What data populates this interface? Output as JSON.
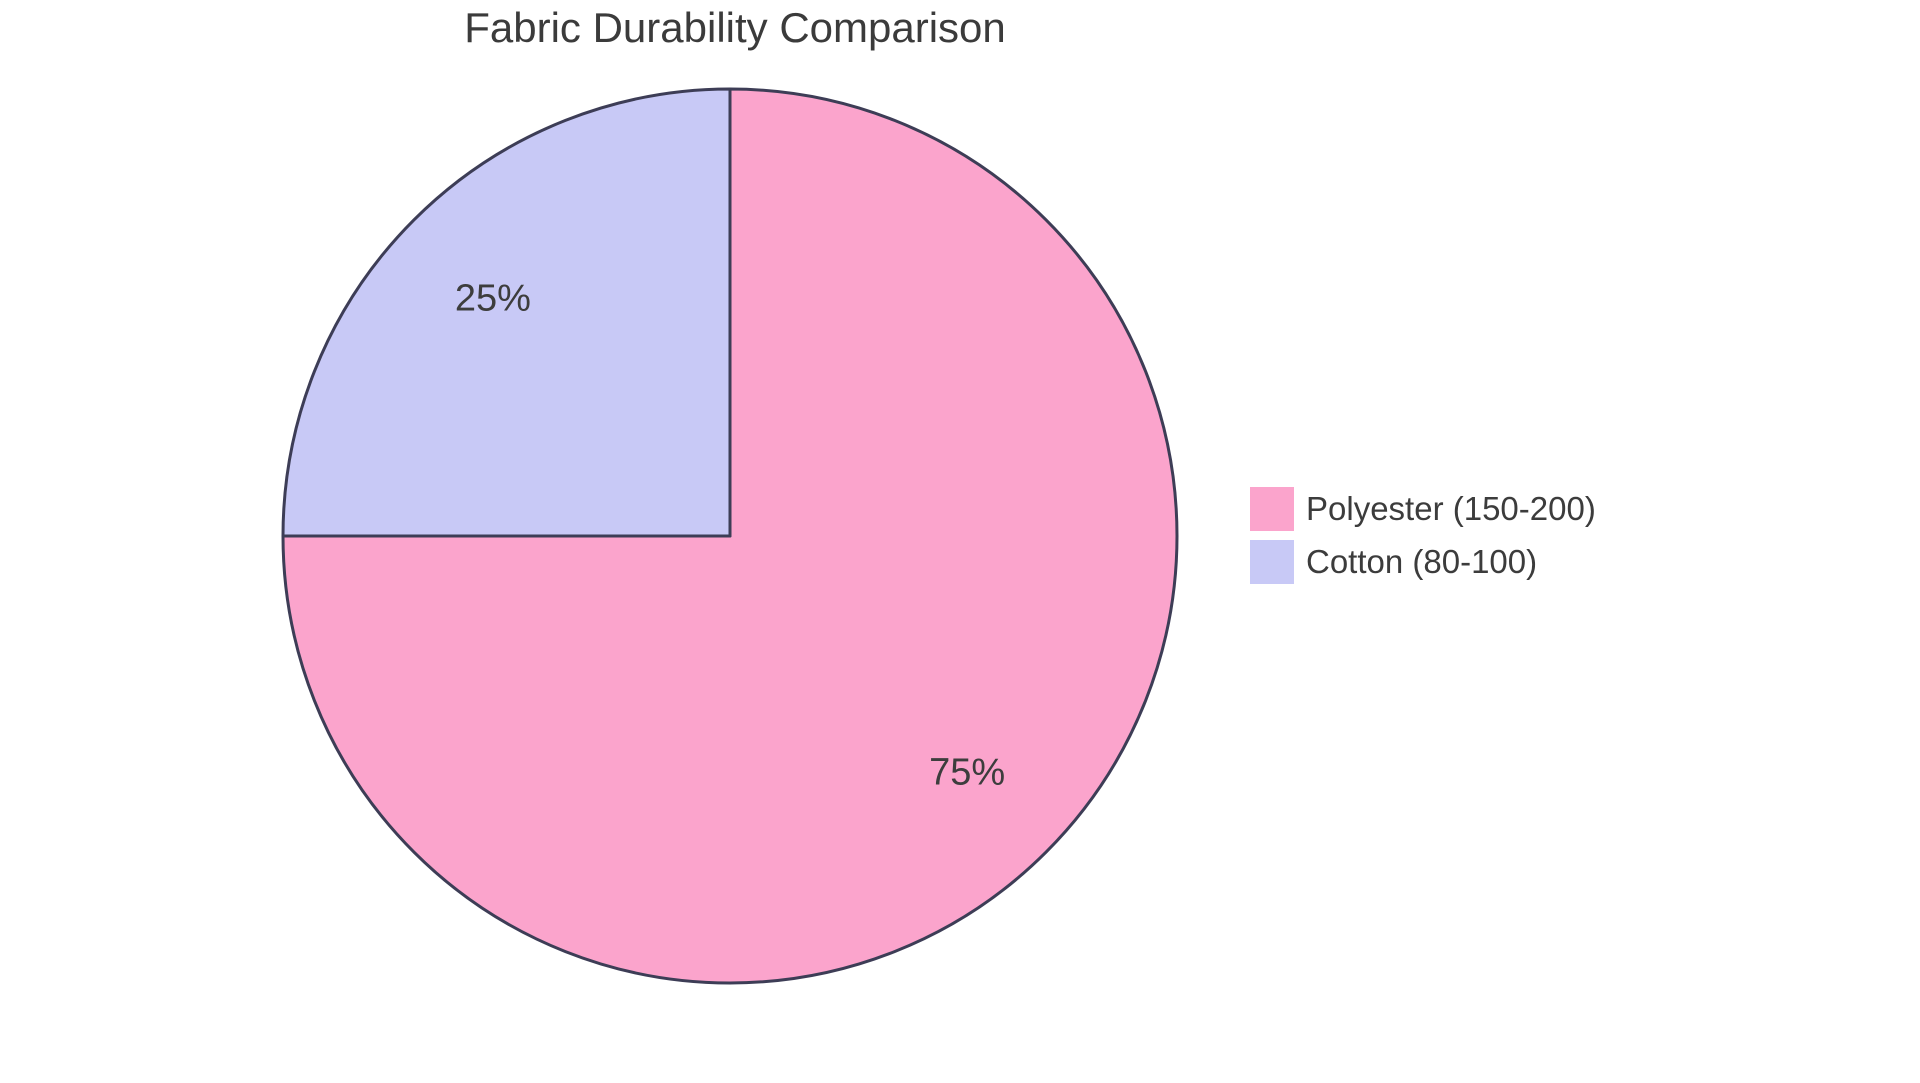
{
  "chart_data": {
    "type": "pie",
    "title": "Fabric Durability Comparison",
    "slices": [
      {
        "label": "Polyester (150-200)",
        "value": 75,
        "pct_label": "75%",
        "color": "#FBA4CC"
      },
      {
        "label": "Cotton (80-100)",
        "value": 25,
        "pct_label": "25%",
        "color": "#C8C9F6"
      }
    ],
    "start_angle_deg": 90,
    "direction": "clockwise",
    "legend_position": "right",
    "outline_color": "#3D3D56",
    "title_color": "#3B3B3B",
    "label_color": "#3D3D3D",
    "background_color": "#FFFFFF"
  }
}
